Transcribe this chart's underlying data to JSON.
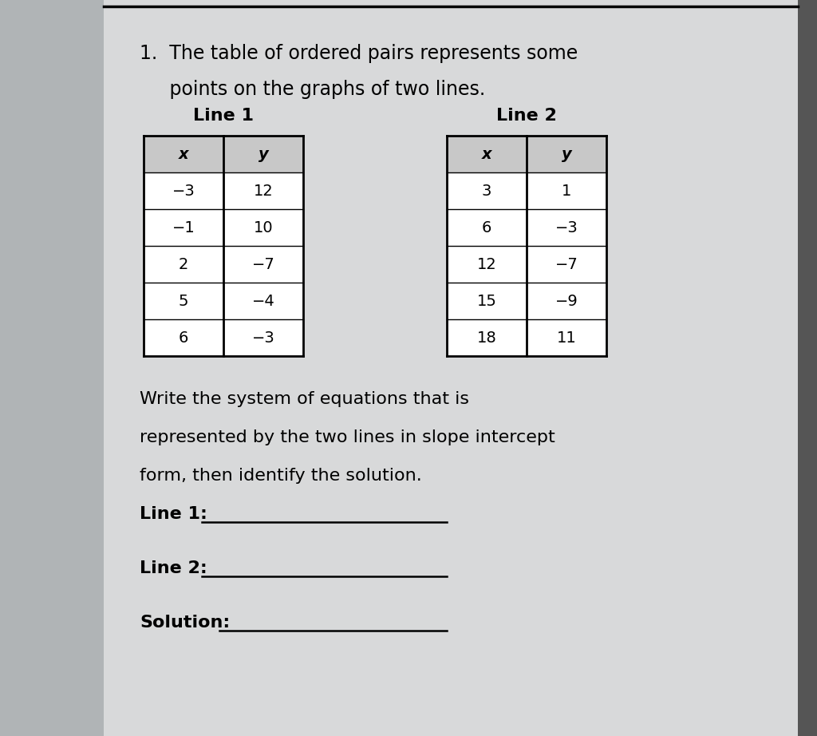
{
  "title_line1": "1.  The table of ordered pairs represents some",
  "title_line2": "     points on the graphs of two lines.",
  "line1_label": "Line 1",
  "line2_label": "Line 2",
  "col_headers": [
    "x",
    "y"
  ],
  "line1_data": [
    [
      "−3",
      "12"
    ],
    [
      "−1",
      "10"
    ],
    [
      "2",
      "−7"
    ],
    [
      "5",
      "−4"
    ],
    [
      "6",
      "−3"
    ]
  ],
  "line2_data": [
    [
      "3",
      "1"
    ],
    [
      "6",
      "−3"
    ],
    [
      "12",
      "−7"
    ],
    [
      "15",
      "−9"
    ],
    [
      "18",
      "11"
    ]
  ],
  "body_line1": "Write the system of equations that is",
  "body_line2": "represented by the two lines in slope intercept",
  "body_line3": "form, then identify the solution.",
  "label1": "Line 1:",
  "label2": "Line 2:",
  "label3": "Solution:",
  "left_bg": "#c5c8c9",
  "page_bg": "#dcdcdc",
  "right_stripe": "#888888",
  "table_header_bg": "#c8c8c8",
  "table_row_bg": "#e8e8e8",
  "table_alt_bg": "#d8d8d8"
}
